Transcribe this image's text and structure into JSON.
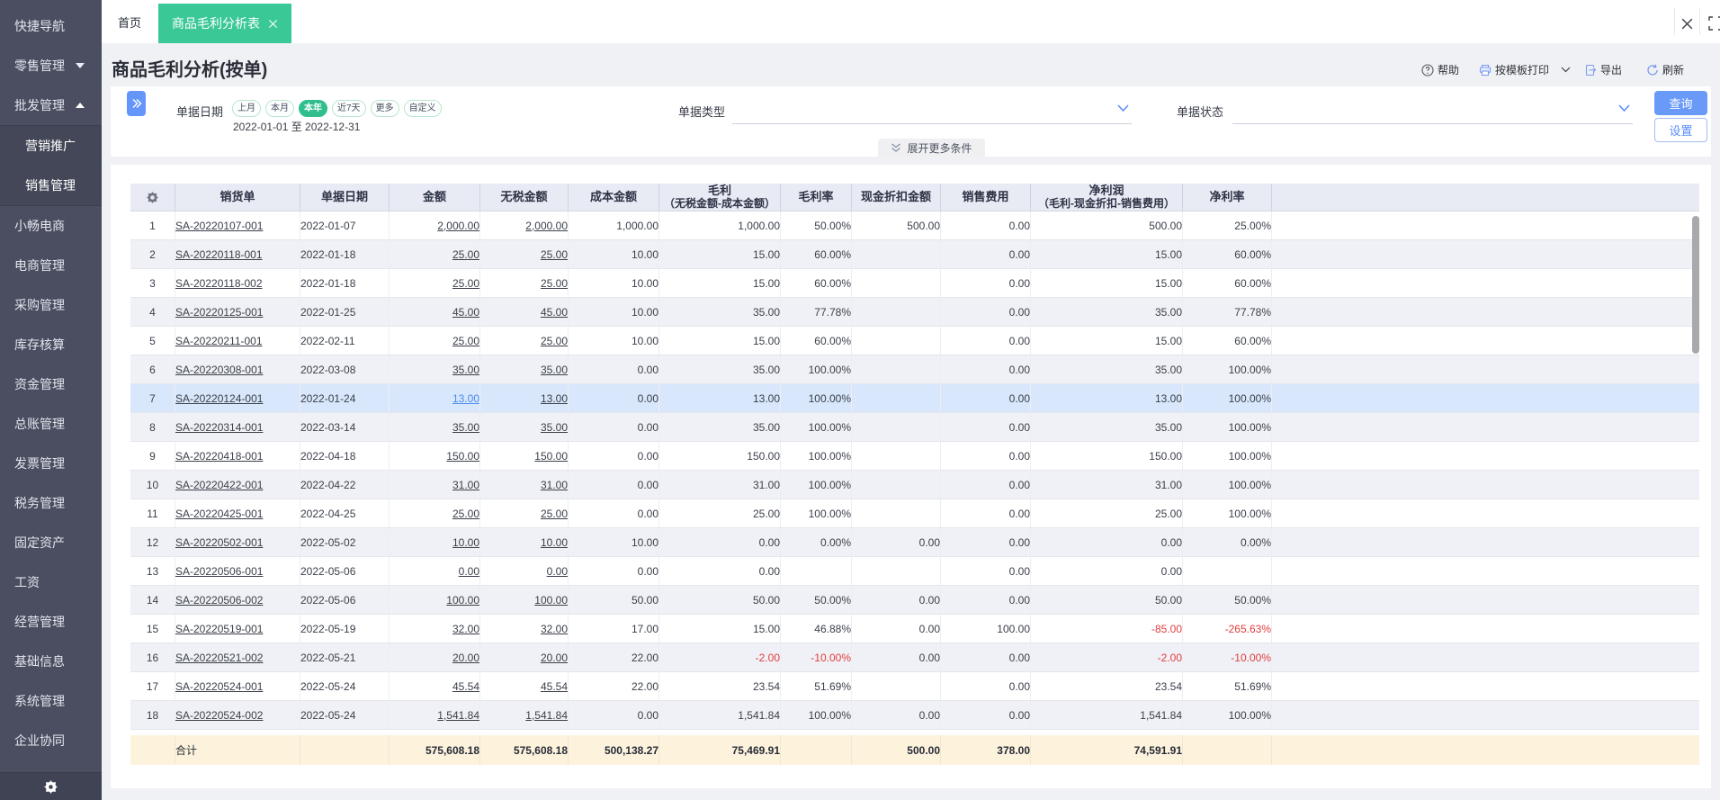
{
  "sidebar": {
    "items": [
      {
        "label": "快捷导航",
        "type": "item"
      },
      {
        "label": "零售管理",
        "type": "group",
        "arrow": "down"
      },
      {
        "label": "批发管理",
        "type": "group",
        "arrow": "up",
        "active": true
      },
      {
        "type": "submenu",
        "items": [
          {
            "label": "营销推广"
          },
          {
            "label": "销售管理"
          }
        ]
      },
      {
        "label": "小畅电商",
        "type": "item"
      },
      {
        "label": "电商管理",
        "type": "item"
      },
      {
        "label": "采购管理",
        "type": "item"
      },
      {
        "label": "库存核算",
        "type": "item"
      },
      {
        "label": "资金管理",
        "type": "item"
      },
      {
        "label": "总账管理",
        "type": "item"
      },
      {
        "label": "发票管理",
        "type": "item"
      },
      {
        "label": "税务管理",
        "type": "item"
      },
      {
        "label": "固定资产",
        "type": "item"
      },
      {
        "label": "工资",
        "type": "item"
      },
      {
        "label": "经营管理",
        "type": "item"
      },
      {
        "label": "基础信息",
        "type": "item"
      },
      {
        "label": "系统管理",
        "type": "item"
      },
      {
        "label": "企业协同",
        "type": "item"
      }
    ],
    "settings_icon": "gear-icon"
  },
  "tabs": {
    "home_label": "首页",
    "active_label": "商品毛利分析表",
    "active_color": "#3ac897",
    "close_icon": "x",
    "fullscreen_icon": "fullscreen"
  },
  "page": {
    "title": "商品毛利分析(按单)",
    "actions": {
      "help": "帮助",
      "print": "按模板打印",
      "export": "导出",
      "refresh": "刷新"
    }
  },
  "filters": {
    "date_label": "单据日期",
    "date_pills": [
      {
        "label": "上月",
        "active": false
      },
      {
        "label": "本月",
        "active": false
      },
      {
        "label": "本年",
        "active": true
      },
      {
        "label": "近7天",
        "active": false
      },
      {
        "label": "更多",
        "active": false
      },
      {
        "label": "自定义",
        "active": false
      }
    ],
    "date_range": "2022-01-01 至 2022-12-31",
    "type_label": "单据类型",
    "type_value": "",
    "status_label": "单据状态",
    "status_value": "",
    "query_button": "查询",
    "settings_button": "设置",
    "expand_button": "展开更多条件"
  },
  "table": {
    "columns": [
      {
        "key": "rownum",
        "label": "",
        "icon": "gear-icon"
      },
      {
        "key": "id",
        "label": "销货单"
      },
      {
        "key": "date",
        "label": "单据日期"
      },
      {
        "key": "amount",
        "label": "金额"
      },
      {
        "key": "untaxed",
        "label": "无税金额"
      },
      {
        "key": "cost",
        "label": "成本金额"
      },
      {
        "key": "gross",
        "label": "毛利",
        "sub": "（无税金额-成本金额）"
      },
      {
        "key": "gross_rate",
        "label": "毛利率"
      },
      {
        "key": "discount",
        "label": "现金折扣金额"
      },
      {
        "key": "expense",
        "label": "销售费用"
      },
      {
        "key": "net",
        "label": "净利润",
        "sub": "（毛利-现金折扣-销售费用）"
      },
      {
        "key": "net_rate",
        "label": "净利率"
      },
      {
        "key": "filler",
        "label": ""
      }
    ],
    "rows": [
      {
        "n": "1",
        "id": "SA-20220107-001",
        "date": "2022-01-07",
        "amount": "2,000.00",
        "untaxed": "2,000.00",
        "cost": "1,000.00",
        "gross": "1,000.00",
        "gross_rate": "50.00%",
        "discount": "500.00",
        "expense": "0.00",
        "net": "500.00",
        "net_rate": "25.00%"
      },
      {
        "n": "2",
        "id": "SA-20220118-001",
        "date": "2022-01-18",
        "amount": "25.00",
        "untaxed": "25.00",
        "cost": "10.00",
        "gross": "15.00",
        "gross_rate": "60.00%",
        "discount": "",
        "expense": "0.00",
        "net": "15.00",
        "net_rate": "60.00%"
      },
      {
        "n": "3",
        "id": "SA-20220118-002",
        "date": "2022-01-18",
        "amount": "25.00",
        "untaxed": "25.00",
        "cost": "10.00",
        "gross": "15.00",
        "gross_rate": "60.00%",
        "discount": "",
        "expense": "0.00",
        "net": "15.00",
        "net_rate": "60.00%"
      },
      {
        "n": "4",
        "id": "SA-20220125-001",
        "date": "2022-01-25",
        "amount": "45.00",
        "untaxed": "45.00",
        "cost": "10.00",
        "gross": "35.00",
        "gross_rate": "77.78%",
        "discount": "",
        "expense": "0.00",
        "net": "35.00",
        "net_rate": "77.78%"
      },
      {
        "n": "5",
        "id": "SA-20220211-001",
        "date": "2022-02-11",
        "amount": "25.00",
        "untaxed": "25.00",
        "cost": "10.00",
        "gross": "15.00",
        "gross_rate": "60.00%",
        "discount": "",
        "expense": "0.00",
        "net": "15.00",
        "net_rate": "60.00%"
      },
      {
        "n": "6",
        "id": "SA-20220308-001",
        "date": "2022-03-08",
        "amount": "35.00",
        "untaxed": "35.00",
        "cost": "0.00",
        "gross": "35.00",
        "gross_rate": "100.00%",
        "discount": "",
        "expense": "0.00",
        "net": "35.00",
        "net_rate": "100.00%"
      },
      {
        "n": "7",
        "id": "SA-20220124-001",
        "date": "2022-01-24",
        "amount": "13.00",
        "untaxed": "13.00",
        "cost": "0.00",
        "gross": "13.00",
        "gross_rate": "100.00%",
        "discount": "",
        "expense": "0.00",
        "net": "13.00",
        "net_rate": "100.00%",
        "highlight": true,
        "amount_active": true
      },
      {
        "n": "8",
        "id": "SA-20220314-001",
        "date": "2022-03-14",
        "amount": "35.00",
        "untaxed": "35.00",
        "cost": "0.00",
        "gross": "35.00",
        "gross_rate": "100.00%",
        "discount": "",
        "expense": "0.00",
        "net": "35.00",
        "net_rate": "100.00%"
      },
      {
        "n": "9",
        "id": "SA-20220418-001",
        "date": "2022-04-18",
        "amount": "150.00",
        "untaxed": "150.00",
        "cost": "0.00",
        "gross": "150.00",
        "gross_rate": "100.00%",
        "discount": "",
        "expense": "0.00",
        "net": "150.00",
        "net_rate": "100.00%"
      },
      {
        "n": "10",
        "id": "SA-20220422-001",
        "date": "2022-04-22",
        "amount": "31.00",
        "untaxed": "31.00",
        "cost": "0.00",
        "gross": "31.00",
        "gross_rate": "100.00%",
        "discount": "",
        "expense": "0.00",
        "net": "31.00",
        "net_rate": "100.00%"
      },
      {
        "n": "11",
        "id": "SA-20220425-001",
        "date": "2022-04-25",
        "amount": "25.00",
        "untaxed": "25.00",
        "cost": "0.00",
        "gross": "25.00",
        "gross_rate": "100.00%",
        "discount": "",
        "expense": "0.00",
        "net": "25.00",
        "net_rate": "100.00%"
      },
      {
        "n": "12",
        "id": "SA-20220502-001",
        "date": "2022-05-02",
        "amount": "10.00",
        "untaxed": "10.00",
        "cost": "10.00",
        "gross": "0.00",
        "gross_rate": "0.00%",
        "discount": "0.00",
        "expense": "0.00",
        "net": "0.00",
        "net_rate": "0.00%"
      },
      {
        "n": "13",
        "id": "SA-20220506-001",
        "date": "2022-05-06",
        "amount": "0.00",
        "untaxed": "0.00",
        "cost": "0.00",
        "gross": "0.00",
        "gross_rate": "",
        "discount": "",
        "expense": "0.00",
        "net": "0.00",
        "net_rate": ""
      },
      {
        "n": "14",
        "id": "SA-20220506-002",
        "date": "2022-05-06",
        "amount": "100.00",
        "untaxed": "100.00",
        "cost": "50.00",
        "gross": "50.00",
        "gross_rate": "50.00%",
        "discount": "0.00",
        "expense": "0.00",
        "net": "50.00",
        "net_rate": "50.00%"
      },
      {
        "n": "15",
        "id": "SA-20220519-001",
        "date": "2022-05-19",
        "amount": "32.00",
        "untaxed": "32.00",
        "cost": "17.00",
        "gross": "15.00",
        "gross_rate": "46.88%",
        "discount": "0.00",
        "expense": "100.00",
        "net": "-85.00",
        "net_rate": "-265.63%"
      },
      {
        "n": "16",
        "id": "SA-20220521-002",
        "date": "2022-05-21",
        "amount": "20.00",
        "untaxed": "20.00",
        "cost": "22.00",
        "gross": "-2.00",
        "gross_rate": "-10.00%",
        "discount": "0.00",
        "expense": "0.00",
        "net": "-2.00",
        "net_rate": "-10.00%"
      },
      {
        "n": "17",
        "id": "SA-20220524-001",
        "date": "2022-05-24",
        "amount": "45.54",
        "untaxed": "45.54",
        "cost": "22.00",
        "gross": "23.54",
        "gross_rate": "51.69%",
        "discount": "",
        "expense": "0.00",
        "net": "23.54",
        "net_rate": "51.69%"
      },
      {
        "n": "18",
        "id": "SA-20220524-002",
        "date": "2022-05-24",
        "amount": "1,541.84",
        "untaxed": "1,541.84",
        "cost": "0.00",
        "gross": "1,541.84",
        "gross_rate": "100.00%",
        "discount": "0.00",
        "expense": "0.00",
        "net": "1,541.84",
        "net_rate": "100.00%"
      }
    ],
    "total": {
      "label": "合计",
      "amount": "575,608.18",
      "untaxed": "575,608.18",
      "cost": "500,138.27",
      "gross": "75,469.91",
      "gross_rate": "",
      "discount": "500.00",
      "expense": "378.00",
      "net": "74,591.91",
      "net_rate": ""
    }
  },
  "colors": {
    "sidebar_bg": "#4a4e60",
    "active_tab_green": "#3ac897",
    "pill_green": "#2fbf8d",
    "accent_blue": "#699af8",
    "table_header_bg": "#e8ebf3",
    "row_stripe": "#f0f1f6",
    "row_highlight": "#d8e7fb",
    "total_row_bg": "#fdf3dd",
    "negative_red": "#e03e3e"
  }
}
